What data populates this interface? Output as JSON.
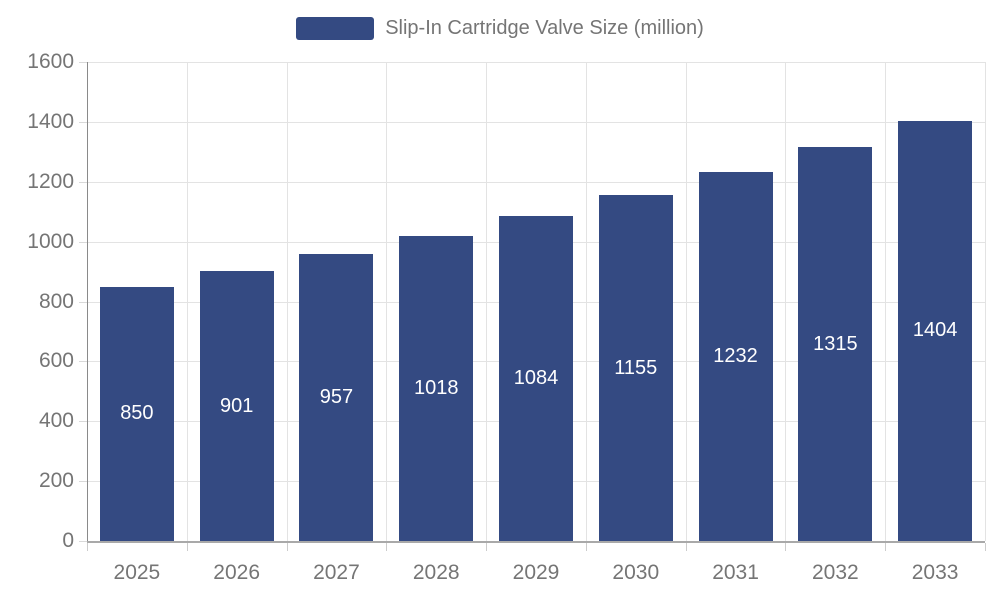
{
  "chart_data": {
    "type": "bar",
    "title": "Slip-In Cartridge Valve Size (million)",
    "categories": [
      "2025",
      "2026",
      "2027",
      "2028",
      "2029",
      "2030",
      "2031",
      "2032",
      "2033"
    ],
    "values": [
      850,
      901,
      957,
      1018,
      1084,
      1155,
      1232,
      1315,
      1404
    ],
    "xlabel": "",
    "ylabel": "",
    "ylim": [
      0,
      1600
    ],
    "ytick_step": 200,
    "yticks": [
      0,
      200,
      400,
      600,
      800,
      1000,
      1200,
      1400,
      1600
    ],
    "grid": true,
    "legend_position": "top-center",
    "colors": {
      "bar": "#344a82",
      "bar_value_label": "#ffffff",
      "axis_text": "#757575",
      "legend_text": "#757575",
      "gridline": "#e3e3e3",
      "axis_line": "#a9a9a9"
    }
  }
}
